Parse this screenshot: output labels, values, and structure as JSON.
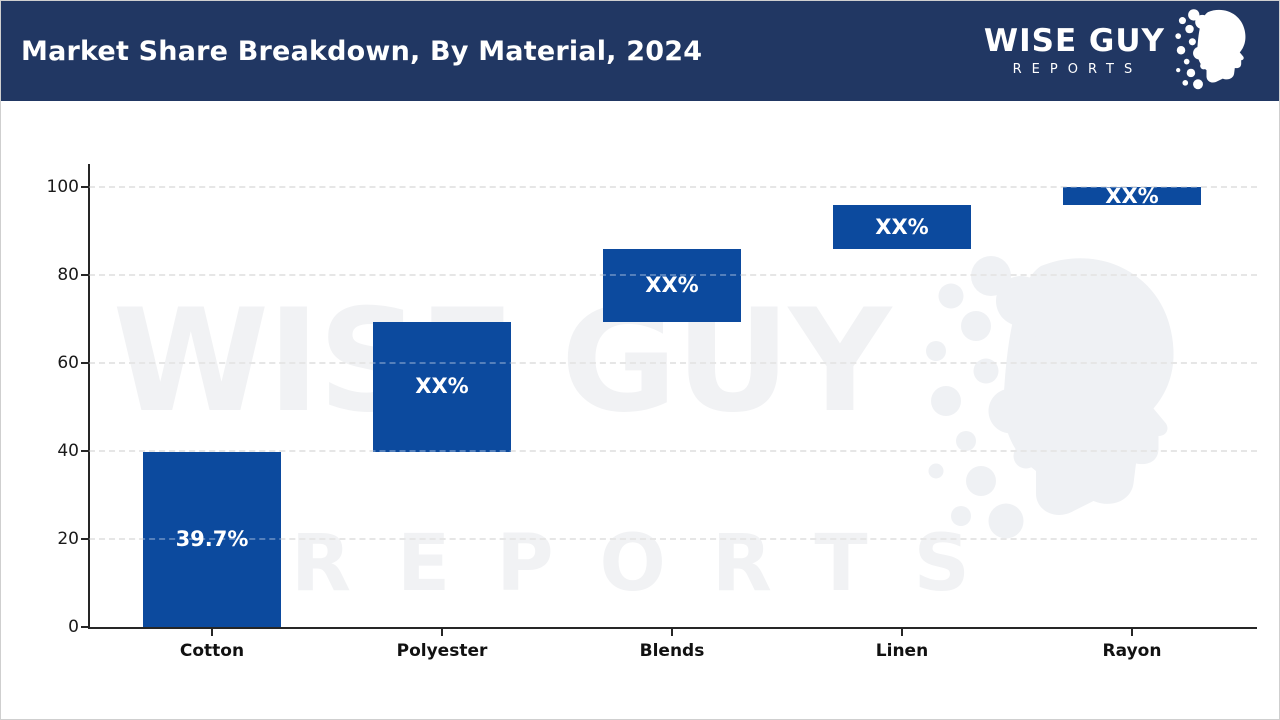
{
  "header": {
    "title": "Market Share Breakdown, By Material, 2024",
    "logo": {
      "primary": "WISE GUY",
      "secondary": "REPORTS"
    }
  },
  "watermark": {
    "primary": "WISE GUY",
    "secondary": "REPORTS"
  },
  "chart_data": {
    "type": "bar",
    "variant": "waterfall",
    "title": "Market Share Breakdown, By Material, 2024",
    "categories": [
      "Cotton",
      "Polyester",
      "Blends",
      "Linen",
      "Rayon"
    ],
    "segments": [
      {
        "category": "Cotton",
        "start": 0,
        "end": 39.7,
        "label": "39.7%"
      },
      {
        "category": "Polyester",
        "start": 39.7,
        "end": 69.4,
        "label": "XX%"
      },
      {
        "category": "Blends",
        "start": 69.4,
        "end": 85.9,
        "label": "XX%"
      },
      {
        "category": "Linen",
        "start": 85.9,
        "end": 95.9,
        "label": "XX%"
      },
      {
        "category": "Rayon",
        "start": 95.9,
        "end": 100,
        "label": "XX%"
      }
    ],
    "xlabel": "",
    "ylabel": "",
    "ylim": [
      0,
      100
    ],
    "yticks": [
      0,
      20,
      40,
      60,
      80,
      100
    ],
    "grid": "horizontal-dashed",
    "legend": null,
    "bar_color": "#0c4a9e"
  },
  "colors": {
    "header_bg": "#213763",
    "bar": "#0c4a9e",
    "grid": "#dcdcdc",
    "axis": "#262626",
    "watermark": "#f1f2f4"
  }
}
